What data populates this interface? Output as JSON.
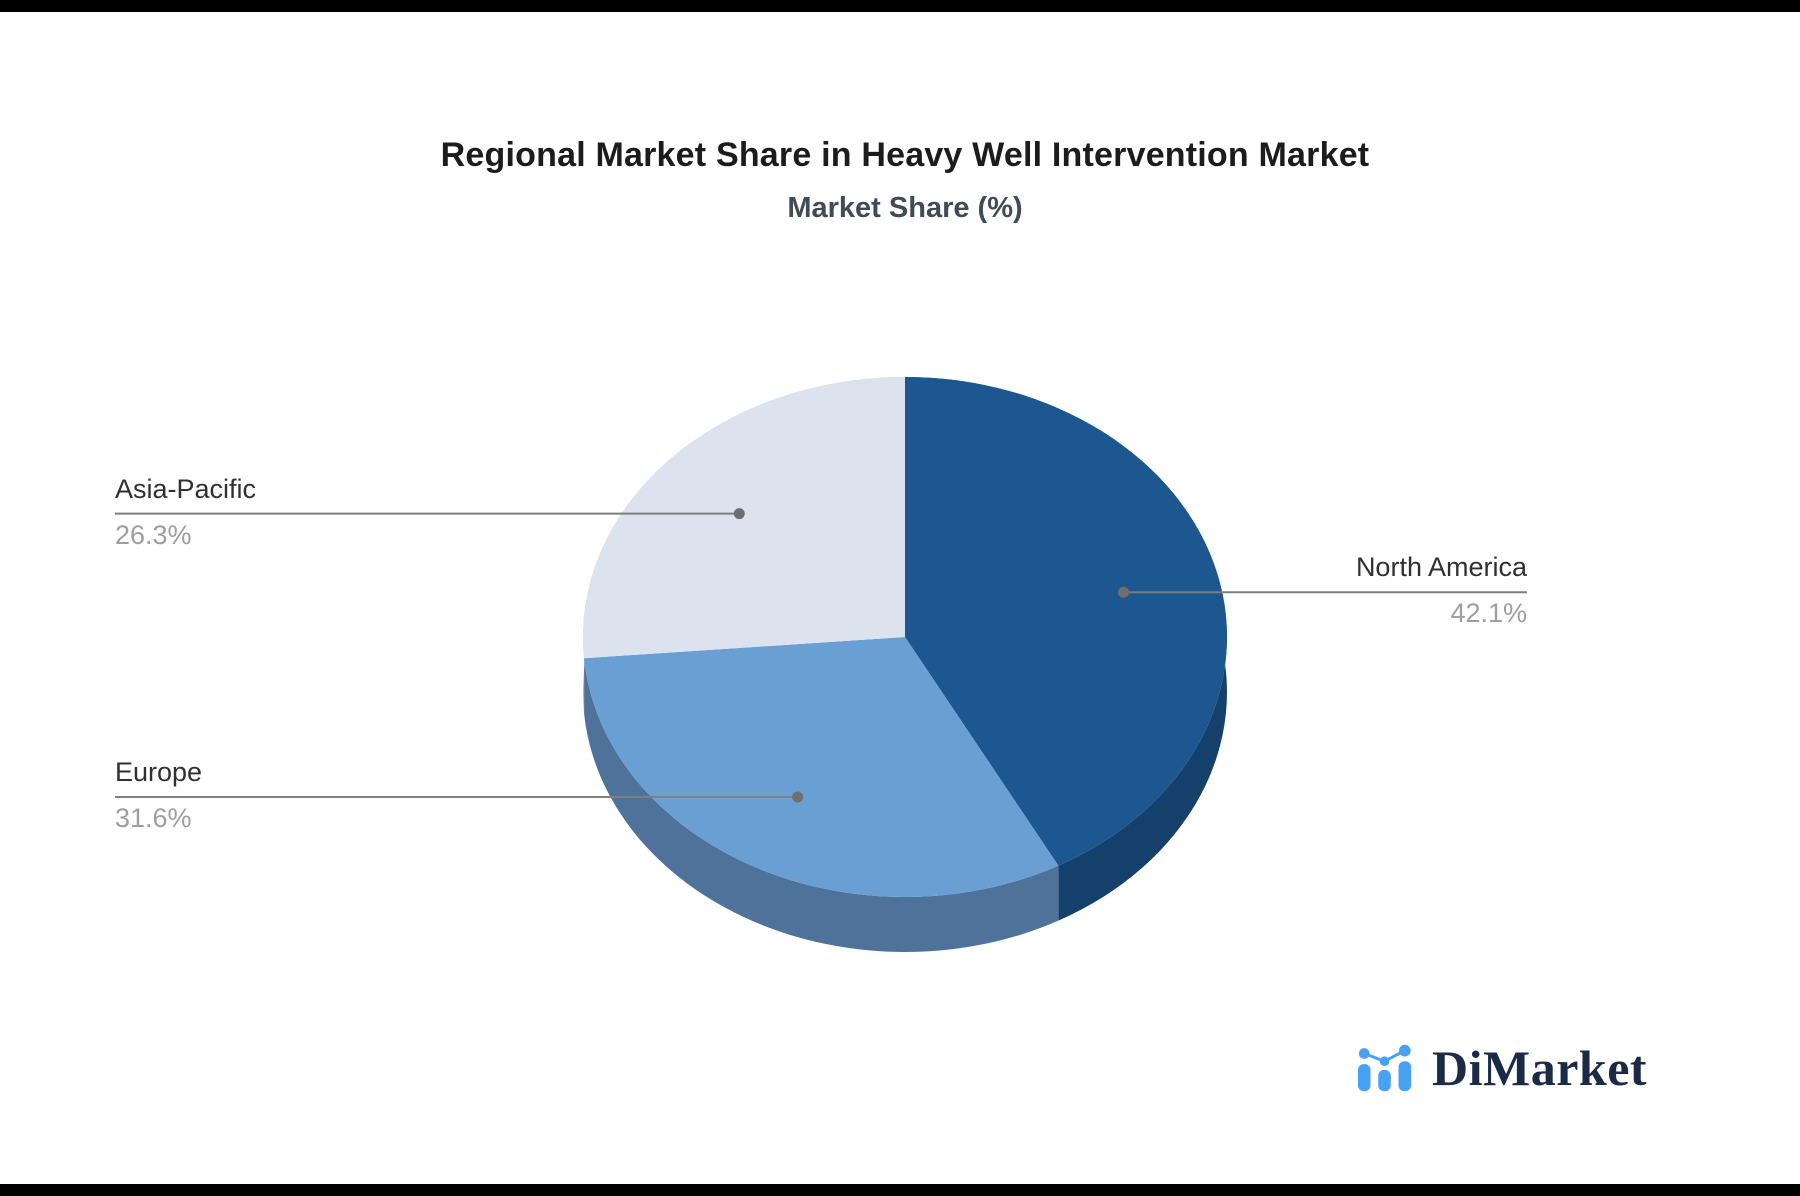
{
  "frame": {
    "background": "#ffffff",
    "edge_bar_color": "#000000"
  },
  "chart_data": {
    "type": "pie",
    "title": "Regional Market Share in Heavy Well Intervention Market",
    "subtitle": "Market Share (%)",
    "unit": "%",
    "start_angle_deg": -90,
    "direction": "clockwise",
    "effect": "3d-depth",
    "slices": [
      {
        "label": "North America",
        "value": 42.1,
        "display": "42.1%",
        "color": "#1d578f",
        "side_color": "#15406b",
        "label_side": "right"
      },
      {
        "label": "Europe",
        "value": 31.6,
        "display": "31.6%",
        "color": "#699fd3",
        "side_color": "#4e7299",
        "label_side": "left"
      },
      {
        "label": "Asia-Pacific",
        "value": 26.3,
        "display": "26.3%",
        "color": "#dce3ef",
        "side_color": "#a9b7cb",
        "label_side": "left"
      }
    ],
    "labels": {
      "name_color": "#303030",
      "value_color": "#9e9e9e",
      "line_color": "#7f7f7f",
      "dot_color": "#6f6f6f",
      "legend": "none"
    }
  },
  "branding": {
    "logo_text": "DiMarket",
    "logo_color": "#1b2a47",
    "icon_name": "bar-chart-trend-icon",
    "icon_color": "#47a1f5"
  }
}
